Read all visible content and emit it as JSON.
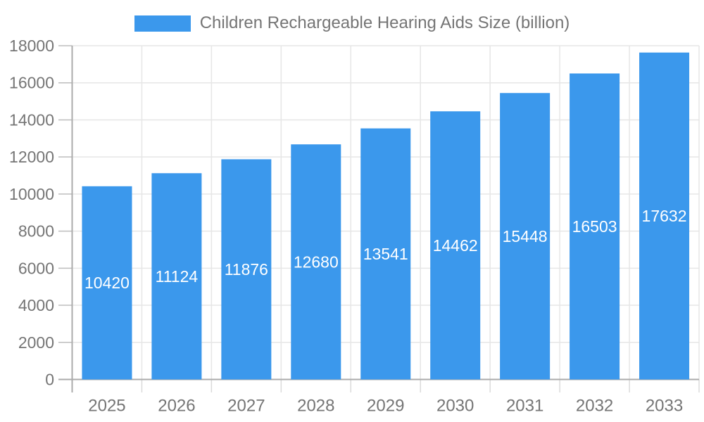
{
  "chart_data": {
    "type": "bar",
    "title": "Children Rechargeable Hearing Aids Size (billion)",
    "categories": [
      "2025",
      "2026",
      "2027",
      "2028",
      "2029",
      "2030",
      "2031",
      "2032",
      "2033"
    ],
    "values": [
      10420,
      11124,
      11876,
      12680,
      13541,
      14462,
      15448,
      16503,
      17632
    ],
    "xlabel": "",
    "ylabel": "",
    "ylim": [
      0,
      18000
    ],
    "yticks": [
      0,
      2000,
      4000,
      6000,
      8000,
      10000,
      12000,
      14000,
      16000,
      18000
    ],
    "grid": true,
    "legend_position": "top",
    "bar_color": "#3B98EC",
    "value_label_color": "#FFFFFF",
    "axis_label_color": "#757575",
    "gridline_color": "#E6E6E6",
    "axis_line_color": "#ABABAB",
    "y_tick_color": "#BDBDBD",
    "x_tick_color": "#DADADA",
    "background_color": "#FFFFFF"
  }
}
